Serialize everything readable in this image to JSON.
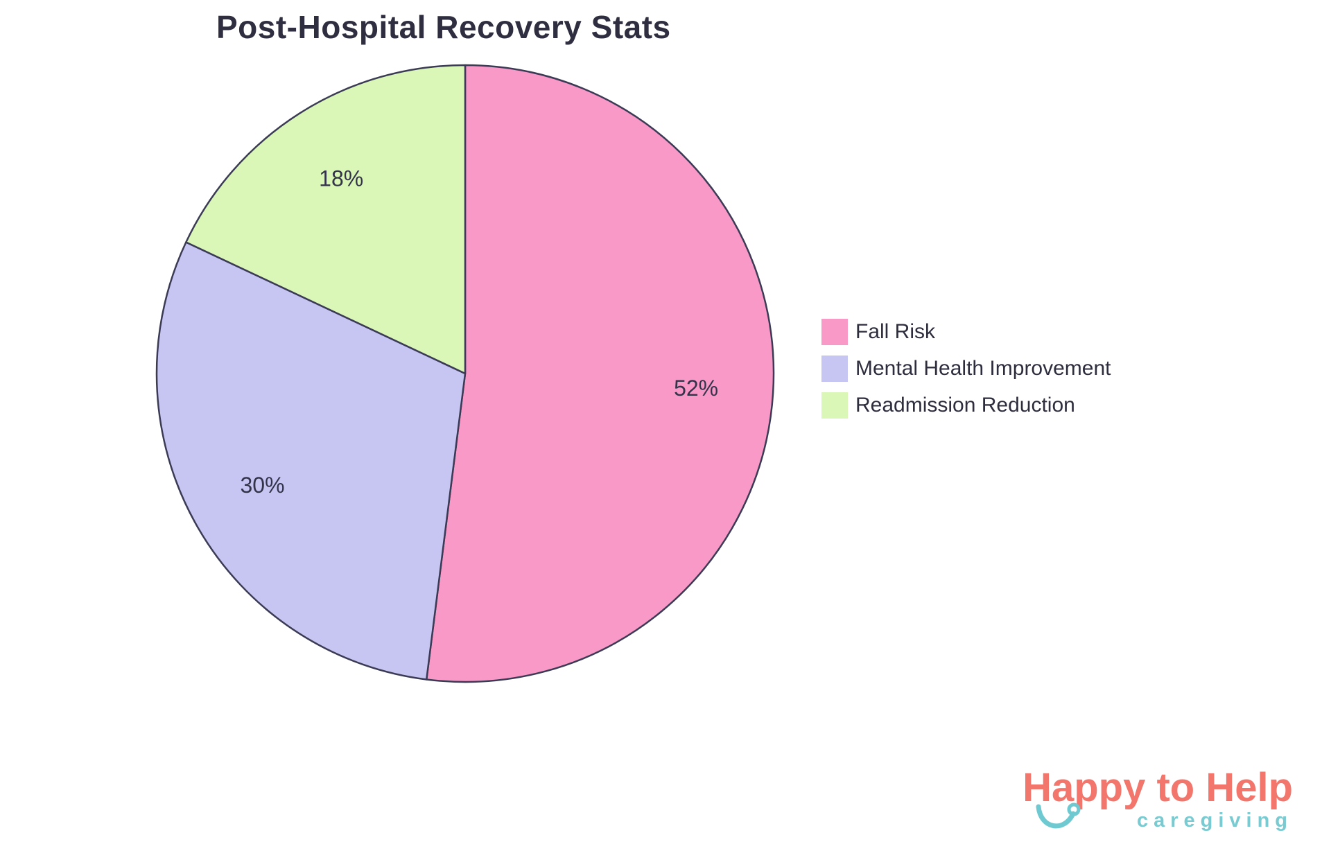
{
  "chart_data": {
    "type": "pie",
    "title": "Post-Hospital Recovery Stats",
    "labels": [
      "Fall Risk",
      "Mental Health Improvement",
      "Readmission Reduction"
    ],
    "values": [
      52,
      30,
      18
    ],
    "percent_labels": [
      "52%",
      "30%",
      "18%"
    ],
    "colors": [
      "#F899C8",
      "#C7C5F2",
      "#DAF7B7"
    ],
    "stroke_color": "#3B3B55",
    "label_color": "#33334A",
    "start_angle_deg": 0,
    "direction": "clockwise",
    "legend_position": "right",
    "grid": false
  },
  "branding": {
    "name": "Happy to Help",
    "tagline": "caregiving",
    "name_color": "#F2766B",
    "tagline_color": "#79CBD1",
    "icon_color": "#6FC9D1"
  }
}
